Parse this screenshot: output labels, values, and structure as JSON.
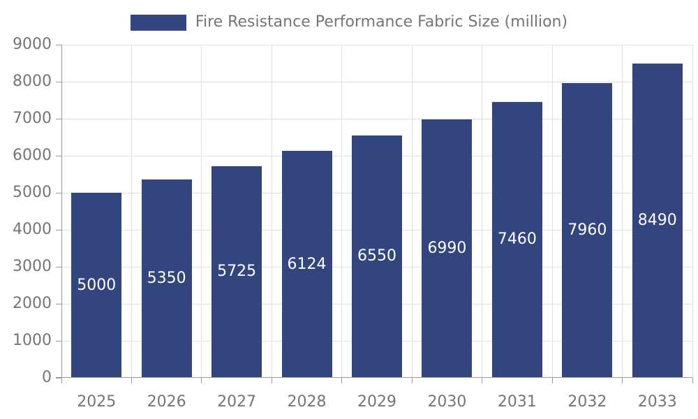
{
  "legend": {
    "label": "Fire Resistance Performance Fabric Size (million)"
  },
  "chart_data": {
    "type": "bar",
    "title": "Fire Resistance Performance Fabric Size (million)",
    "categories": [
      "2025",
      "2026",
      "2027",
      "2028",
      "2029",
      "2030",
      "2031",
      "2032",
      "2033"
    ],
    "values": [
      5000,
      5350,
      5725,
      6124,
      6550,
      6990,
      7460,
      7960,
      8490
    ],
    "series_name": "Fire Resistance Performance Fabric Size (million)",
    "xlabel": "",
    "ylabel": "",
    "ylim": [
      0,
      9000
    ],
    "ytick_step": 1000,
    "ytick_labels": [
      "0",
      "1000",
      "2000",
      "3000",
      "4000",
      "5000",
      "6000",
      "7000",
      "8000",
      "9000"
    ],
    "grid": true,
    "legend_position": "top-center",
    "value_label_position": "inside-center",
    "colors": {
      "bar": "#32457f",
      "axis_text": "#757575",
      "value_label": "#ffffff",
      "grid_line": "#e0e0e0",
      "axis_line": "#999999",
      "background": "#ffffff"
    }
  }
}
